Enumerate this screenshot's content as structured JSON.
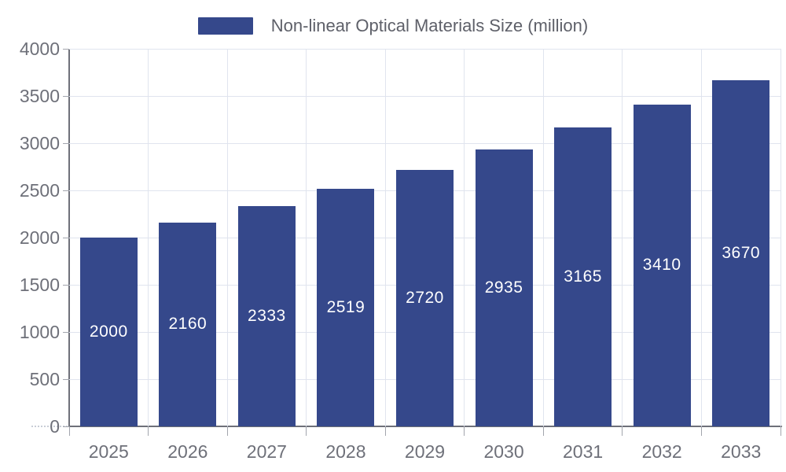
{
  "legend": {
    "label": "Non-linear Optical Materials Size (million)"
  },
  "chart_data": {
    "type": "bar",
    "title": "Non-linear Optical Materials Size (million)",
    "categories": [
      "2025",
      "2026",
      "2027",
      "2028",
      "2029",
      "2030",
      "2031",
      "2032",
      "2033"
    ],
    "series": [
      {
        "name": "Non-linear Optical Materials Size (million)",
        "values": [
          2000,
          2160,
          2333,
          2519,
          2720,
          2935,
          3165,
          3410,
          3670
        ]
      }
    ],
    "xlabel": "",
    "ylabel": "",
    "ylim": [
      0,
      4000
    ],
    "ytick_step": 500,
    "ytick_labels": [
      "0",
      "500",
      "1000",
      "1500",
      "2000",
      "2500",
      "3000",
      "3500",
      "4000"
    ],
    "grid": true,
    "legend_position": "top-center",
    "value_labels": "inside-center",
    "colors": {
      "bar": "#35488B",
      "grid_line": "#E0E4EE",
      "axis_line": "#6E7079",
      "tick_label": "#6E7079",
      "legend_text": "#5E6069",
      "value_label": "#FFFFFF",
      "background": "#FFFFFF"
    }
  }
}
